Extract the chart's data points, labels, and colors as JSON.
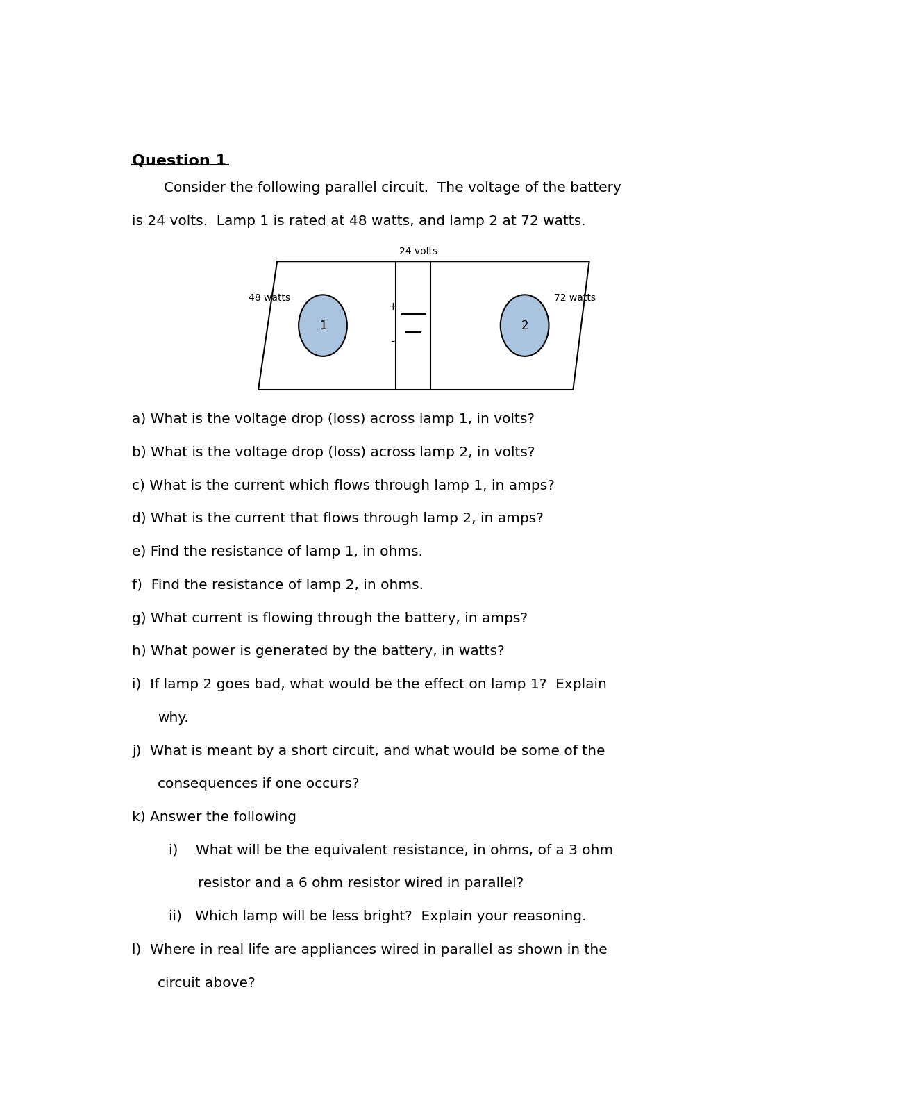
{
  "title": "Question 1",
  "intro_line1": "Consider the following parallel circuit.  The voltage of the battery",
  "intro_line2": "is 24 volts.  Lamp 1 is rated at 48 watts, and lamp 2 at 72 watts.",
  "circuit": {
    "battery_label": "24 volts",
    "lamp1_label": "48 watts",
    "lamp1_number": "1",
    "lamp2_label": "72 watts",
    "lamp2_number": "2",
    "lamp_color": "#aac4e0",
    "wire_color": "#000000",
    "battery_plus": "+",
    "battery_minus": "-"
  },
  "background_color": "#ffffff",
  "text_color": "#000000",
  "font_size": 14.5,
  "title_font_size": 16
}
